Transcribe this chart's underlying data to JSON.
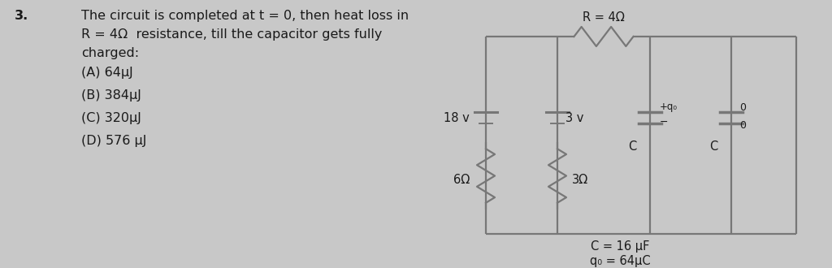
{
  "bg_color": "#c8c8c8",
  "question_number": "3.",
  "question_text_line1": "The circuit is completed at t = 0, then heat loss in",
  "question_text_line2": "R = 4Ω  resistance, till the capacitor gets fully",
  "question_text_line3": "charged:",
  "options": [
    "(A) 64μJ",
    "(B) 384μJ",
    "(C) 320μJ",
    "(D) 576 μJ"
  ],
  "circuit_label_R": "R = 4Ω",
  "circuit_label_18v": "18 v",
  "circuit_label_3v": "3 v",
  "circuit_label_6ohm": "6Ω",
  "circuit_label_3ohm": "3Ω",
  "circuit_label_C1": "C",
  "circuit_label_C2": "C",
  "circuit_label_C_val": "C = 16 μF",
  "circuit_label_q0": "q₀ = 64μC",
  "circuit_label_plusq": "+q₀",
  "circuit_label_minus": "−",
  "circuit_label_0top": "0",
  "circuit_label_0bot": "0",
  "text_color": "#1a1a1a",
  "circuit_color": "#777777",
  "font_size_q": 11.5,
  "font_size_options": 11.5,
  "font_size_circuit": 10.5
}
